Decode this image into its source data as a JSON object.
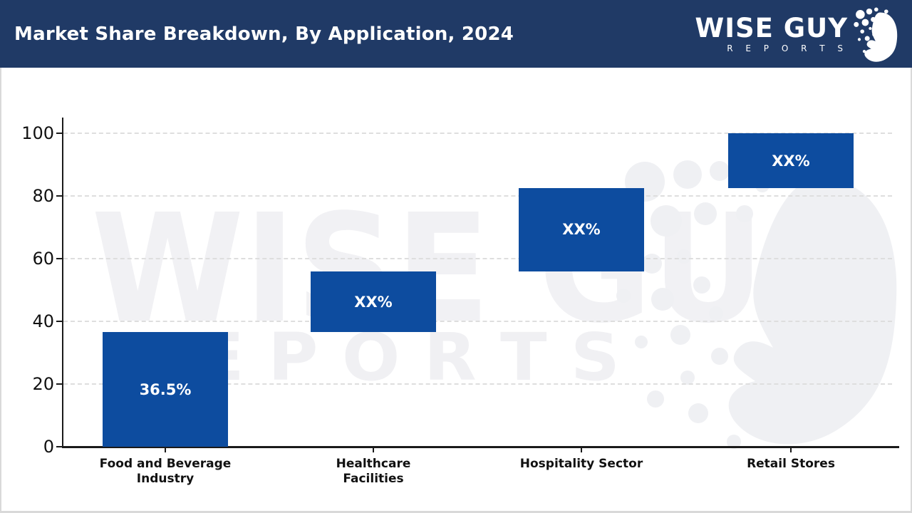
{
  "header": {
    "title": "Market Share Breakdown, By Application, 2024",
    "logo": {
      "brand": "WISE GUY",
      "sub": "R E P O R T S"
    }
  },
  "watermark": {
    "brand": "WISE GU",
    "sub": "R E P O R T S"
  },
  "colors": {
    "header_bg": "#203a66",
    "bar": "#0d4c9f",
    "axis": "#1a1a1a",
    "gridline": "#dedede",
    "watermark": "#f1f1f4",
    "frame_border": "#d9d9d9",
    "value_label": "#ffffff"
  },
  "chart_data": {
    "type": "bar",
    "subtype": "waterfall",
    "title": "Market Share Breakdown, By Application, 2024",
    "categories": [
      "Food and Beverage\nIndustry",
      "Healthcare\nFacilities",
      "Hospitality Sector",
      "Retail Stores"
    ],
    "bars": [
      {
        "category": "Food and Beverage Industry",
        "start": 0,
        "end": 36.5,
        "value_label": "36.5%"
      },
      {
        "category": "Healthcare Facilities",
        "start": 36.5,
        "end": 56,
        "value_label": "XX%"
      },
      {
        "category": "Hospitality Sector",
        "start": 56,
        "end": 82.5,
        "value_label": "XX%"
      },
      {
        "category": "Retail Stores",
        "start": 82.5,
        "end": 100,
        "value_label": "XX%"
      }
    ],
    "yticks": [
      0,
      20,
      40,
      60,
      80,
      100
    ],
    "ylim": [
      0,
      105
    ],
    "xlabel": "",
    "ylabel": "",
    "grid": "horizontal-dashed",
    "legend": "none"
  }
}
